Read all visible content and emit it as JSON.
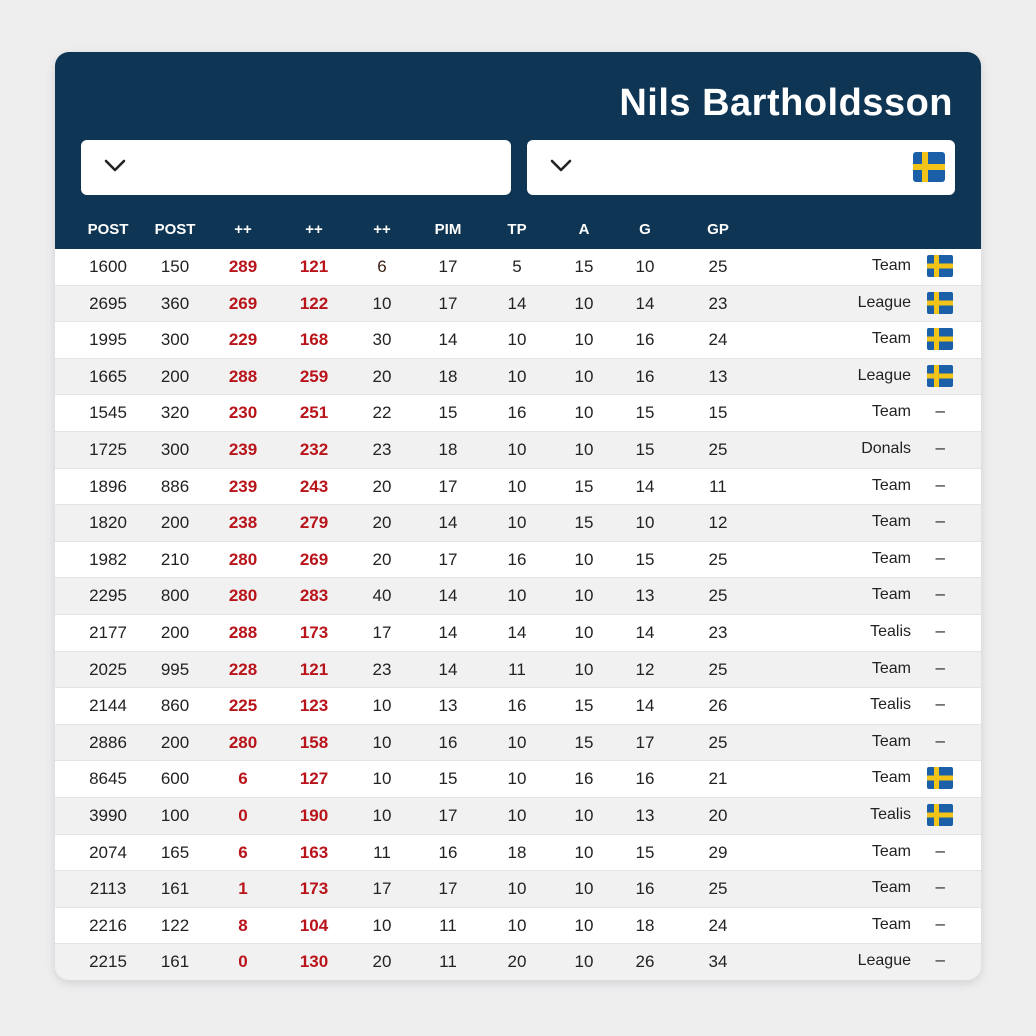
{
  "player": {
    "name": "Nils Bartholdsson"
  },
  "selects": {
    "left_value": "",
    "right_value": ""
  },
  "icons": {
    "flag": "sweden-flag-icon",
    "chevron": "chevron-down-icon"
  },
  "colors": {
    "header_bg": "#0e3553",
    "highlight": "#b8141a"
  },
  "columns": [
    "POST",
    "POST",
    "++",
    "++",
    "++",
    "PIM",
    "TP",
    "A",
    "G",
    "GP"
  ],
  "rows": [
    {
      "flag": true,
      "team": "Team",
      "gp": "25",
      "g": "10",
      "a": "15",
      "tp": "5",
      "pim": "17",
      "c1": "6",
      "c2": "121",
      "c3": "289",
      "post1": "150",
      "post2": "1600"
    },
    {
      "flag": true,
      "team": "League",
      "gp": "23",
      "g": "14",
      "a": "10",
      "tp": "14",
      "pim": "17",
      "c1": "10",
      "c2": "122",
      "c3": "269",
      "post1": "360",
      "post2": "2695"
    },
    {
      "flag": true,
      "team": "Team",
      "gp": "24",
      "g": "16",
      "a": "10",
      "tp": "10",
      "pim": "14",
      "c1": "30",
      "c2": "168",
      "c3": "229",
      "post1": "300",
      "post2": "1995"
    },
    {
      "flag": true,
      "team": "League",
      "gp": "13",
      "g": "16",
      "a": "10",
      "tp": "10",
      "pim": "18",
      "c1": "20",
      "c2": "259",
      "c3": "288",
      "post1": "200",
      "post2": "1665"
    },
    {
      "flag": false,
      "team": "Team",
      "gp": "15",
      "g": "15",
      "a": "10",
      "tp": "16",
      "pim": "15",
      "c1": "22",
      "c2": "251",
      "c3": "230",
      "post1": "320",
      "post2": "1545"
    },
    {
      "flag": false,
      "team": "Donals",
      "gp": "25",
      "g": "15",
      "a": "10",
      "tp": "10",
      "pim": "18",
      "c1": "23",
      "c2": "232",
      "c3": "239",
      "post1": "300",
      "post2": "1725"
    },
    {
      "flag": false,
      "team": "Team",
      "gp": "11",
      "g": "14",
      "a": "15",
      "tp": "10",
      "pim": "17",
      "c1": "20",
      "c2": "243",
      "c3": "239",
      "post1": "886",
      "post2": "1896"
    },
    {
      "flag": false,
      "team": "Team",
      "gp": "12",
      "g": "10",
      "a": "15",
      "tp": "10",
      "pim": "14",
      "c1": "20",
      "c2": "279",
      "c3": "238",
      "post1": "200",
      "post2": "1820"
    },
    {
      "flag": false,
      "team": "Team",
      "gp": "25",
      "g": "15",
      "a": "10",
      "tp": "16",
      "pim": "17",
      "c1": "20",
      "c2": "269",
      "c3": "280",
      "post1": "210",
      "post2": "1982"
    },
    {
      "flag": false,
      "team": "Team",
      "gp": "25",
      "g": "13",
      "a": "10",
      "tp": "10",
      "pim": "14",
      "c1": "40",
      "c2": "283",
      "c3": "280",
      "post1": "800",
      "post2": "2295"
    },
    {
      "flag": false,
      "team": "Tealis",
      "gp": "23",
      "g": "14",
      "a": "10",
      "tp": "14",
      "pim": "14",
      "c1": "17",
      "c2": "173",
      "c3": "288",
      "post1": "200",
      "post2": "2177"
    },
    {
      "flag": false,
      "team": "Team",
      "gp": "25",
      "g": "12",
      "a": "10",
      "tp": "11",
      "pim": "14",
      "c1": "23",
      "c2": "121",
      "c3": "228",
      "post1": "995",
      "post2": "2025"
    },
    {
      "flag": false,
      "team": "Tealis",
      "gp": "26",
      "g": "14",
      "a": "15",
      "tp": "16",
      "pim": "13",
      "c1": "10",
      "c2": "123",
      "c3": "225",
      "post1": "860",
      "post2": "2144"
    },
    {
      "flag": false,
      "team": "Team",
      "gp": "25",
      "g": "17",
      "a": "15",
      "tp": "10",
      "pim": "16",
      "c1": "10",
      "c2": "158",
      "c3": "280",
      "post1": "200",
      "post2": "2886"
    },
    {
      "flag": true,
      "team": "Team",
      "gp": "21",
      "g": "16",
      "a": "16",
      "tp": "10",
      "pim": "15",
      "c1": "10",
      "c2": "127",
      "c3": "6",
      "post1": "600",
      "post2": "8645"
    },
    {
      "flag": true,
      "team": "Tealis",
      "gp": "20",
      "g": "13",
      "a": "10",
      "tp": "10",
      "pim": "17",
      "c1": "10",
      "c2": "190",
      "c3": "0",
      "post1": "100",
      "post2": "3990"
    },
    {
      "flag": false,
      "team": "Team",
      "gp": "29",
      "g": "15",
      "a": "10",
      "tp": "18",
      "pim": "16",
      "c1": "11",
      "c2": "163",
      "c3": "6",
      "post1": "165",
      "post2": "2074"
    },
    {
      "flag": false,
      "team": "Team",
      "gp": "25",
      "g": "16",
      "a": "10",
      "tp": "10",
      "pim": "17",
      "c1": "17",
      "c2": "173",
      "c3": "1",
      "post1": "161",
      "post2": "2113"
    },
    {
      "flag": false,
      "team": "Team",
      "gp": "24",
      "g": "18",
      "a": "10",
      "tp": "10",
      "pim": "11",
      "c1": "10",
      "c2": "104",
      "c3": "8",
      "post1": "122",
      "post2": "2216"
    },
    {
      "flag": false,
      "team": "League",
      "gp": "34",
      "g": "26",
      "a": "10",
      "tp": "20",
      "pim": "11",
      "c1": "20",
      "c2": "130",
      "c3": "0",
      "post1": "161",
      "post2": "2215"
    }
  ]
}
